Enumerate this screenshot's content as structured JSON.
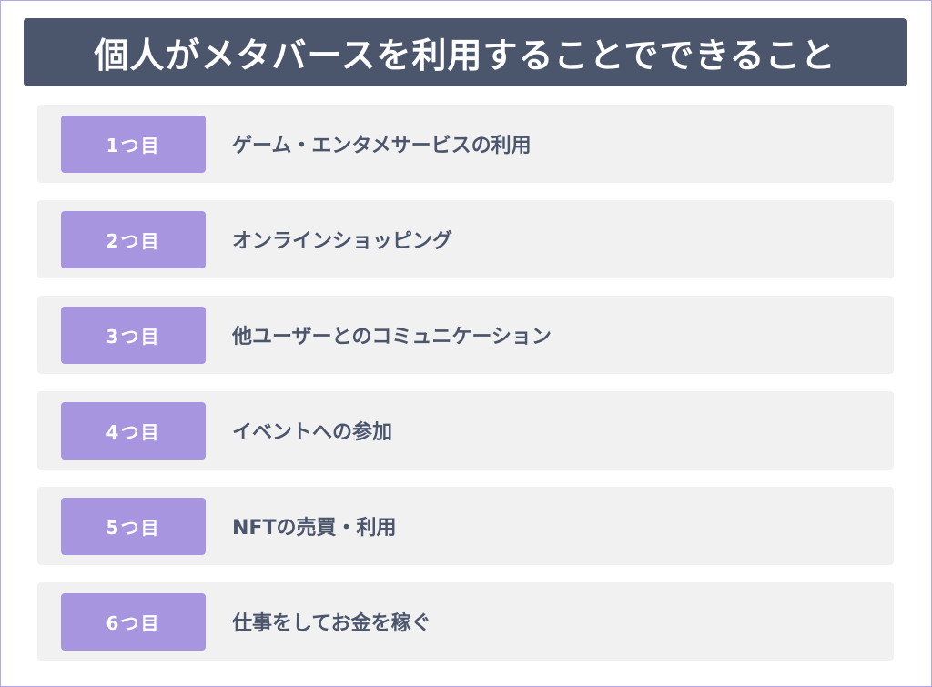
{
  "title": "個人がメタバースを利用することでできること",
  "colors": {
    "header": "#4b566d",
    "badge": "#a796df",
    "row_bg": "#f1f1f1",
    "border": "#b6a6e6"
  },
  "items": [
    {
      "badge": "1つ目",
      "label": "ゲーム・エンタメサービスの利用"
    },
    {
      "badge": "2つ目",
      "label": "オンラインショッピング"
    },
    {
      "badge": "3つ目",
      "label": "他ユーザーとのコミュニケーション"
    },
    {
      "badge": "4つ目",
      "label": "イベントへの参加"
    },
    {
      "badge": "5つ目",
      "label": "NFTの売買・利用"
    },
    {
      "badge": "6つ目",
      "label": "仕事をしてお金を稼ぐ"
    }
  ]
}
